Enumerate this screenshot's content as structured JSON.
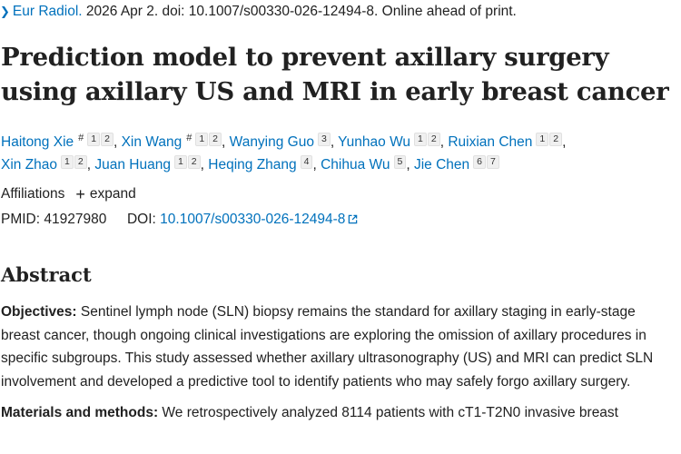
{
  "citation": {
    "journal": "Eur Radiol.",
    "rest": " 2026 Apr 2. doi: 10.1007/s00330-026-12494-8. Online ahead of print."
  },
  "title": "Prediction model to prevent axillary surgery using axillary US and MRI in early breast cancer",
  "authors": [
    {
      "name": "Haitong Xie",
      "equal": "#",
      "affs": [
        "1",
        "2"
      ]
    },
    {
      "name": "Xin Wang",
      "equal": "#",
      "affs": [
        "1",
        "2"
      ]
    },
    {
      "name": "Wanying Guo",
      "equal": "",
      "affs": [
        "3"
      ]
    },
    {
      "name": "Yunhao Wu",
      "equal": "",
      "affs": [
        "1",
        "2"
      ]
    },
    {
      "name": "Ruixian Chen",
      "equal": "",
      "affs": [
        "1",
        "2"
      ]
    },
    {
      "name": "Xin Zhao",
      "equal": "",
      "affs": [
        "1",
        "2"
      ]
    },
    {
      "name": "Juan Huang",
      "equal": "",
      "affs": [
        "1",
        "2"
      ]
    },
    {
      "name": "Heqing Zhang",
      "equal": "",
      "affs": [
        "4"
      ]
    },
    {
      "name": "Chihua Wu",
      "equal": "",
      "affs": [
        "5"
      ]
    },
    {
      "name": "Jie Chen",
      "equal": "",
      "affs": [
        "6",
        "7"
      ]
    }
  ],
  "affiliations": {
    "label": "Affiliations",
    "expand_label": "expand"
  },
  "ids": {
    "pmid_label": "PMID:",
    "pmid": "41927980",
    "doi_label": "DOI:",
    "doi": "10.1007/s00330-026-12494-8"
  },
  "abstract": {
    "heading": "Abstract",
    "objectives_label": "Objectives:",
    "objectives_text": " Sentinel lymph node (SLN) biopsy remains the standard for axillary staging in early-stage breast cancer, though ongoing clinical investigations are exploring the omission of axillary procedures in specific subgroups. This study assessed whether axillary ultrasonography (US) and MRI can predict SLN involvement and developed a predictive tool to identify patients who may safely forgo axillary surgery.",
    "methods_label": "Materials and methods:",
    "methods_text": " We retrospectively analyzed 8114 patients with cT1-T2N0 invasive breast"
  },
  "colors": {
    "link": "#0071bc",
    "text": "#212121"
  }
}
